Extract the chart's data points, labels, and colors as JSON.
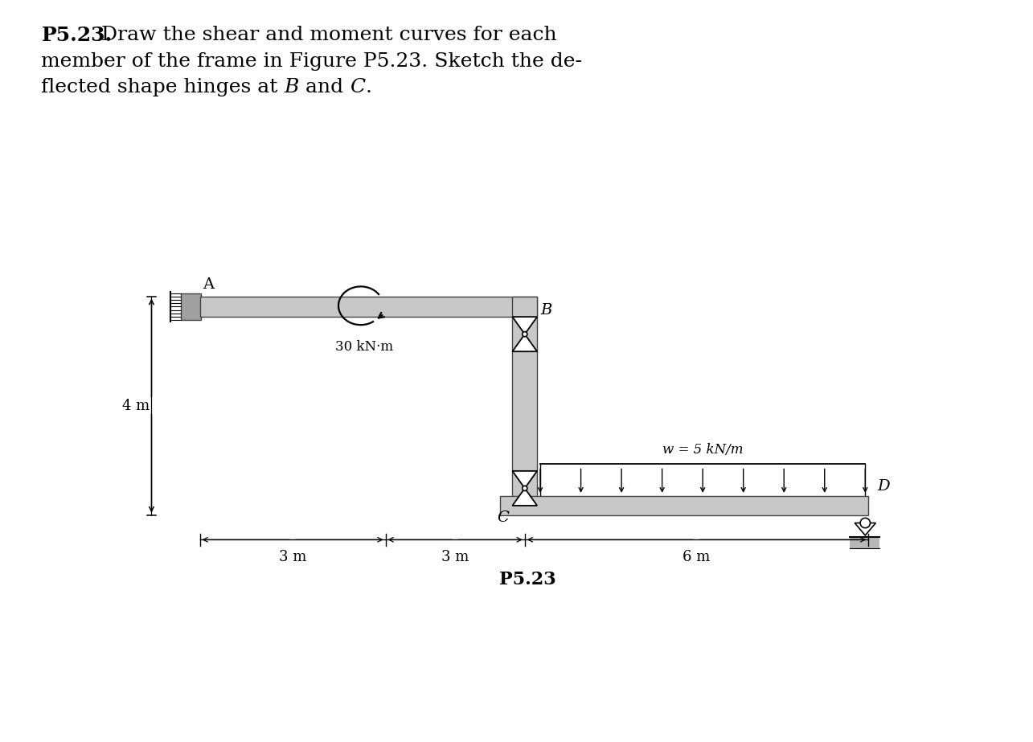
{
  "title_bold": "P5.23.",
  "title_line1": " Draw the shear and moment curves for each",
  "title_line2": "member of the frame in Figure P5.23. Sketch the de-",
  "title_line3a": "flected shape hinges at ",
  "title_italic_B": "B",
  "title_line3b": " and ",
  "title_italic_C": "C",
  "title_line3c": ".",
  "fig_label": "P5.23",
  "label_A": "A",
  "label_B": "B",
  "label_C": "C",
  "label_D": "D",
  "dim_4m": "4 m",
  "dim_3m_1": "3 m",
  "dim_3m_2": "3 m",
  "dim_6m": "6 m",
  "moment_label": "30 kN·m",
  "load_label": "w = 5 kN/m",
  "beam_color_light": "#c8c8c8",
  "beam_color_dark": "#a0a0a0",
  "beam_edge_color": "#444444",
  "background": "#ffffff",
  "title_fontsize": 18,
  "label_fontsize": 14
}
